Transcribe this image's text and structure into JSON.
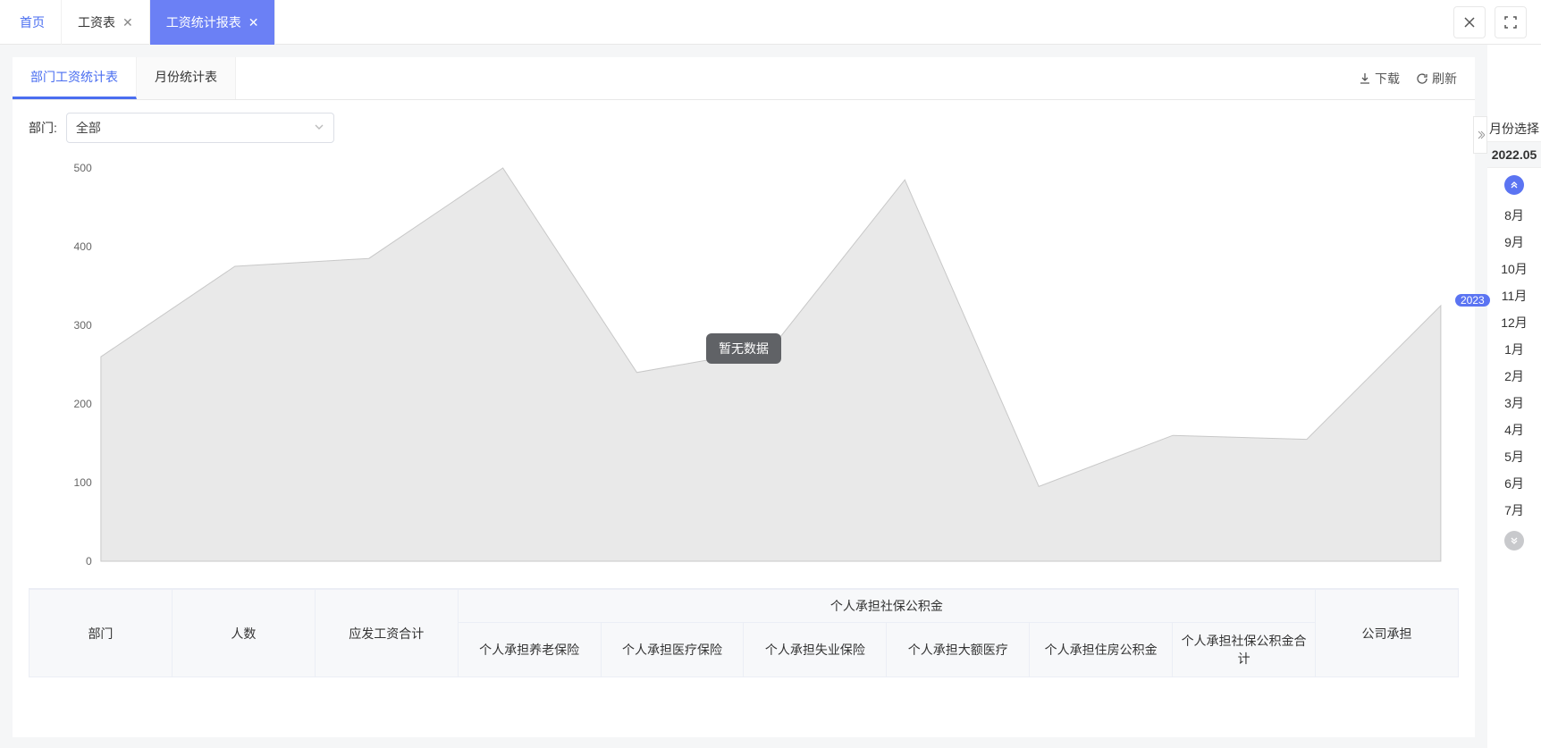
{
  "top_tabs": {
    "home": "首页",
    "tab1": {
      "label": "工资表"
    },
    "tab2": {
      "label": "工资统计报表",
      "active": true
    }
  },
  "sub_tabs": {
    "tab_a": "部门工资统计表",
    "tab_b": "月份统计表"
  },
  "toolbar": {
    "download": "下载",
    "refresh": "刷新"
  },
  "filter": {
    "label": "部门:",
    "value": "全部"
  },
  "chart": {
    "type": "area",
    "tooltip": "暂无数据",
    "ylim": [
      0,
      500
    ],
    "yticks": [
      0,
      100,
      200,
      300,
      400,
      500
    ],
    "area_fill": "#e9e9e9",
    "line_color": "#c8c8c8",
    "bg_color": "#ffffff",
    "tick_color": "#666666",
    "tick_fontsize": 12,
    "points_count": 11,
    "values": [
      260,
      375,
      385,
      500,
      240,
      270,
      485,
      95,
      160,
      155,
      325
    ]
  },
  "table": {
    "group_header": "个人承担社保公积金",
    "cols_left": [
      "部门",
      "人数",
      "应发工资合计"
    ],
    "cols_group": [
      "个人承担养老保险",
      "个人承担医疗保险",
      "个人承担失业保险",
      "个人承担大额医疗",
      "个人承担住房公积金",
      "个人承担社保公积金合计"
    ],
    "col_trail": "公司承担"
  },
  "month_rail": {
    "title": "月份选择",
    "selected": "2022.05",
    "year_pill": "2023",
    "months": [
      "8月",
      "9月",
      "10月",
      "11月",
      "12月",
      "1月",
      "2月",
      "3月",
      "4月",
      "5月",
      "6月",
      "7月"
    ]
  }
}
